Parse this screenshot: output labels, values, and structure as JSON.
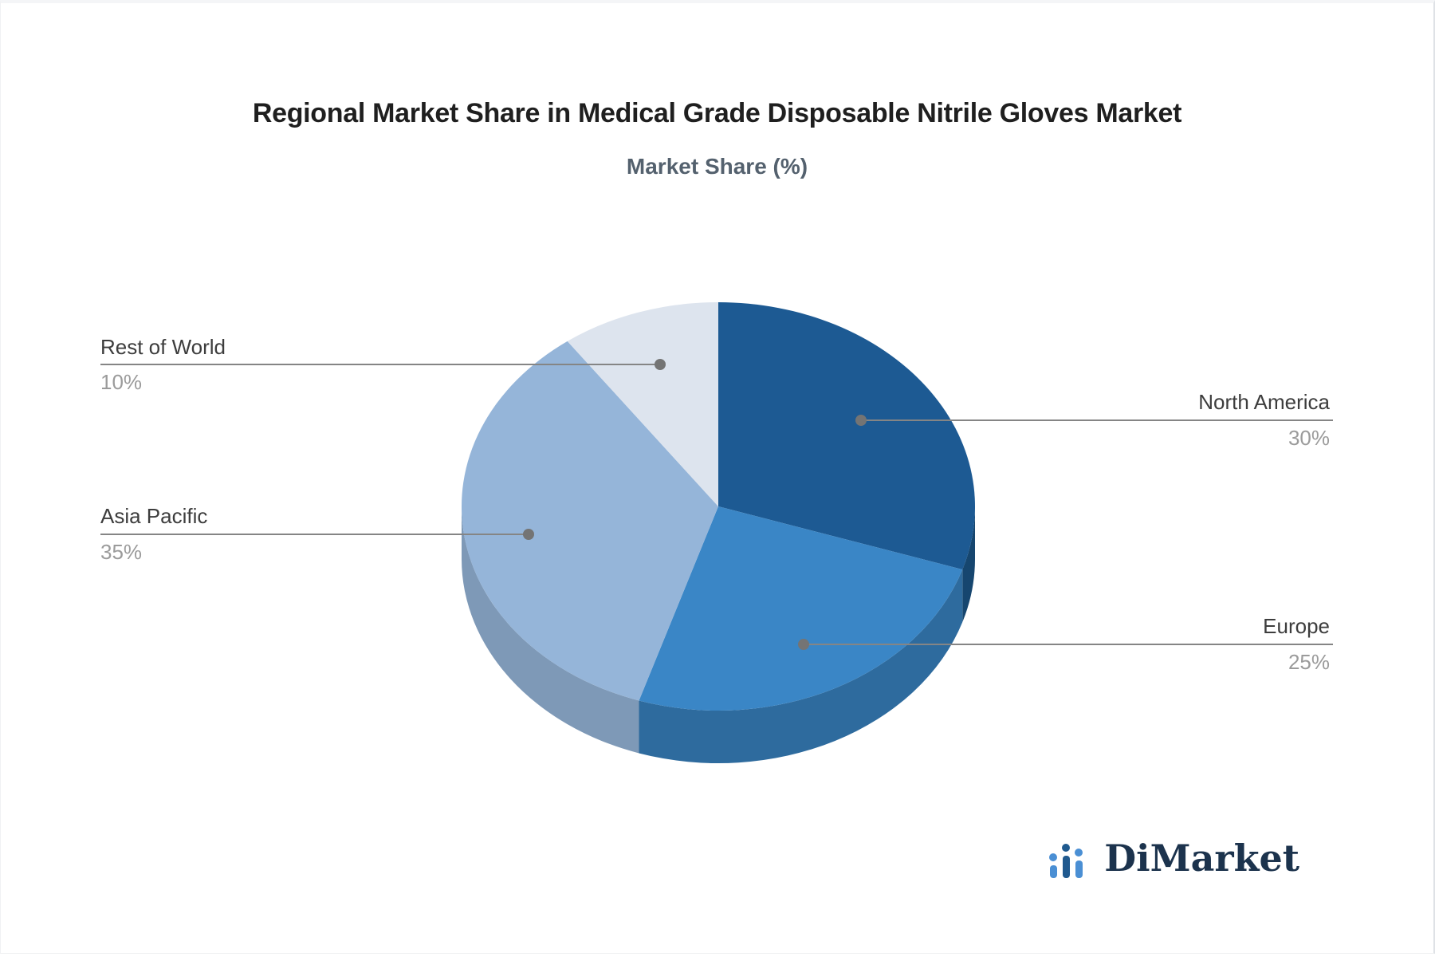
{
  "header": {
    "title": "Regional Market Share in Medical Grade Disposable Nitrile Gloves Market",
    "subtitle": "Market Share (%)"
  },
  "chart_data": {
    "type": "pie",
    "title": "Regional Market Share in Medical Grade Disposable Nitrile Gloves Market",
    "subtitle": "Market Share (%)",
    "unit": "%",
    "labels": [
      "North America",
      "Europe",
      "Asia Pacific",
      "Rest of World"
    ],
    "values": [
      30,
      25,
      35,
      10
    ],
    "colors": [
      "#1d5a93",
      "#3a86c6",
      "#95b5d9",
      "#dde4ee"
    ],
    "side_colors": [
      "#16466f",
      "#2e6b9e",
      "#7e99b7",
      "#b9c6d8"
    ],
    "start_angle_deg": 0,
    "direction": "clockwise",
    "style": "3d",
    "leader_line_color": "#858585",
    "leader_dot_color": "#747474",
    "label_color": "#3d3d3d",
    "value_color": "#9b9b9b",
    "legend_position": "callouts"
  },
  "callouts": [
    {
      "label": "North America",
      "value": "30%"
    },
    {
      "label": "Europe",
      "value": "25%"
    },
    {
      "label": "Asia Pacific",
      "value": "35%"
    },
    {
      "label": "Rest of World",
      "value": "10%"
    }
  ],
  "logo": {
    "text": "DiMarket",
    "icon": "bar-chart-logo-icon"
  }
}
